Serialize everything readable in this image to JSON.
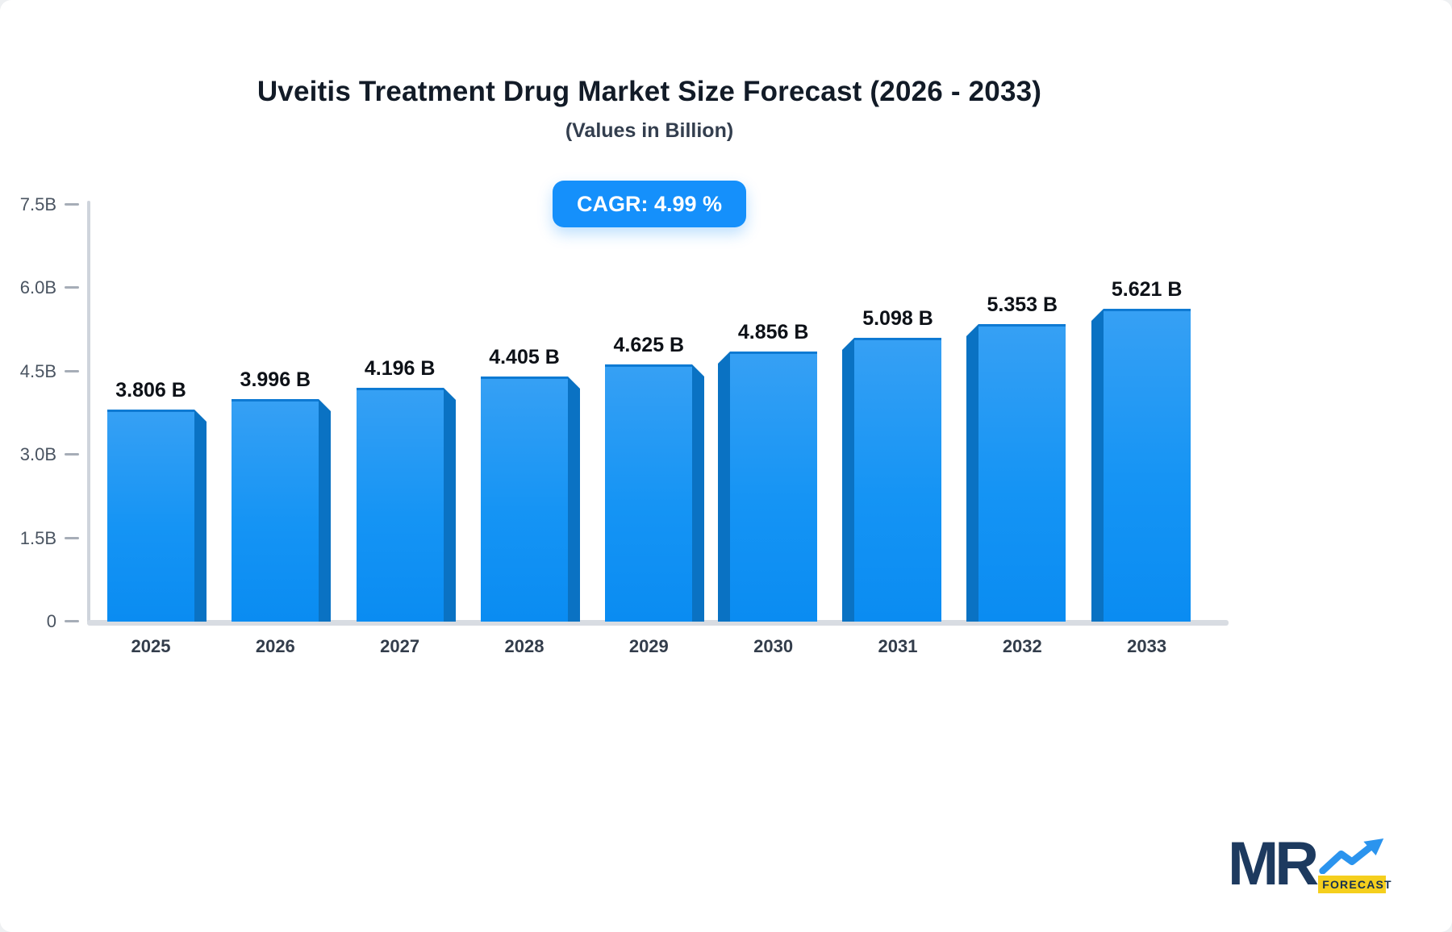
{
  "chart_data": {
    "type": "bar",
    "title": "Uveitis Treatment Drug Market Size Forecast (2026 - 2033)",
    "subtitle": "(Values in Billion)",
    "cagr_badge": "CAGR: 4.99 %",
    "categories": [
      "2025",
      "2026",
      "2027",
      "2028",
      "2029",
      "2030",
      "2031",
      "2032",
      "2033"
    ],
    "values": [
      3.806,
      3.996,
      4.196,
      4.405,
      4.625,
      4.856,
      5.098,
      5.353,
      5.621
    ],
    "value_labels": [
      "3.806 B",
      "3.996 B",
      "4.196 B",
      "4.405 B",
      "4.625 B",
      "4.856 B",
      "5.098 B",
      "5.353 B",
      "5.621 B"
    ],
    "xlabel": "",
    "ylabel": "",
    "ytick_labels": [
      "7.5B",
      "6.0B",
      "4.5B",
      "3.0B",
      "1.5B",
      "0"
    ],
    "ytick_values": [
      7.5,
      6.0,
      4.5,
      3.0,
      1.5,
      0
    ],
    "ylim": [
      0,
      7.5
    ],
    "grid": false,
    "legend": "none",
    "bar_style": "3d-extruded-central-perspective",
    "colors": {
      "bar_face_top": "#36A0F4",
      "bar_face_mid": "#1594F4",
      "bar_face_bottom": "#0A8CF2",
      "bar_side": "#0A72C3",
      "badge_bg": "#1590FB",
      "badge_text": "#FFFFFF",
      "axis_line": "#CFD4DC",
      "baseline": "#D8DCE2",
      "tick_dash": "#A6ADB7"
    }
  },
  "logo": {
    "text": "MR",
    "sub": "FORECAST"
  }
}
